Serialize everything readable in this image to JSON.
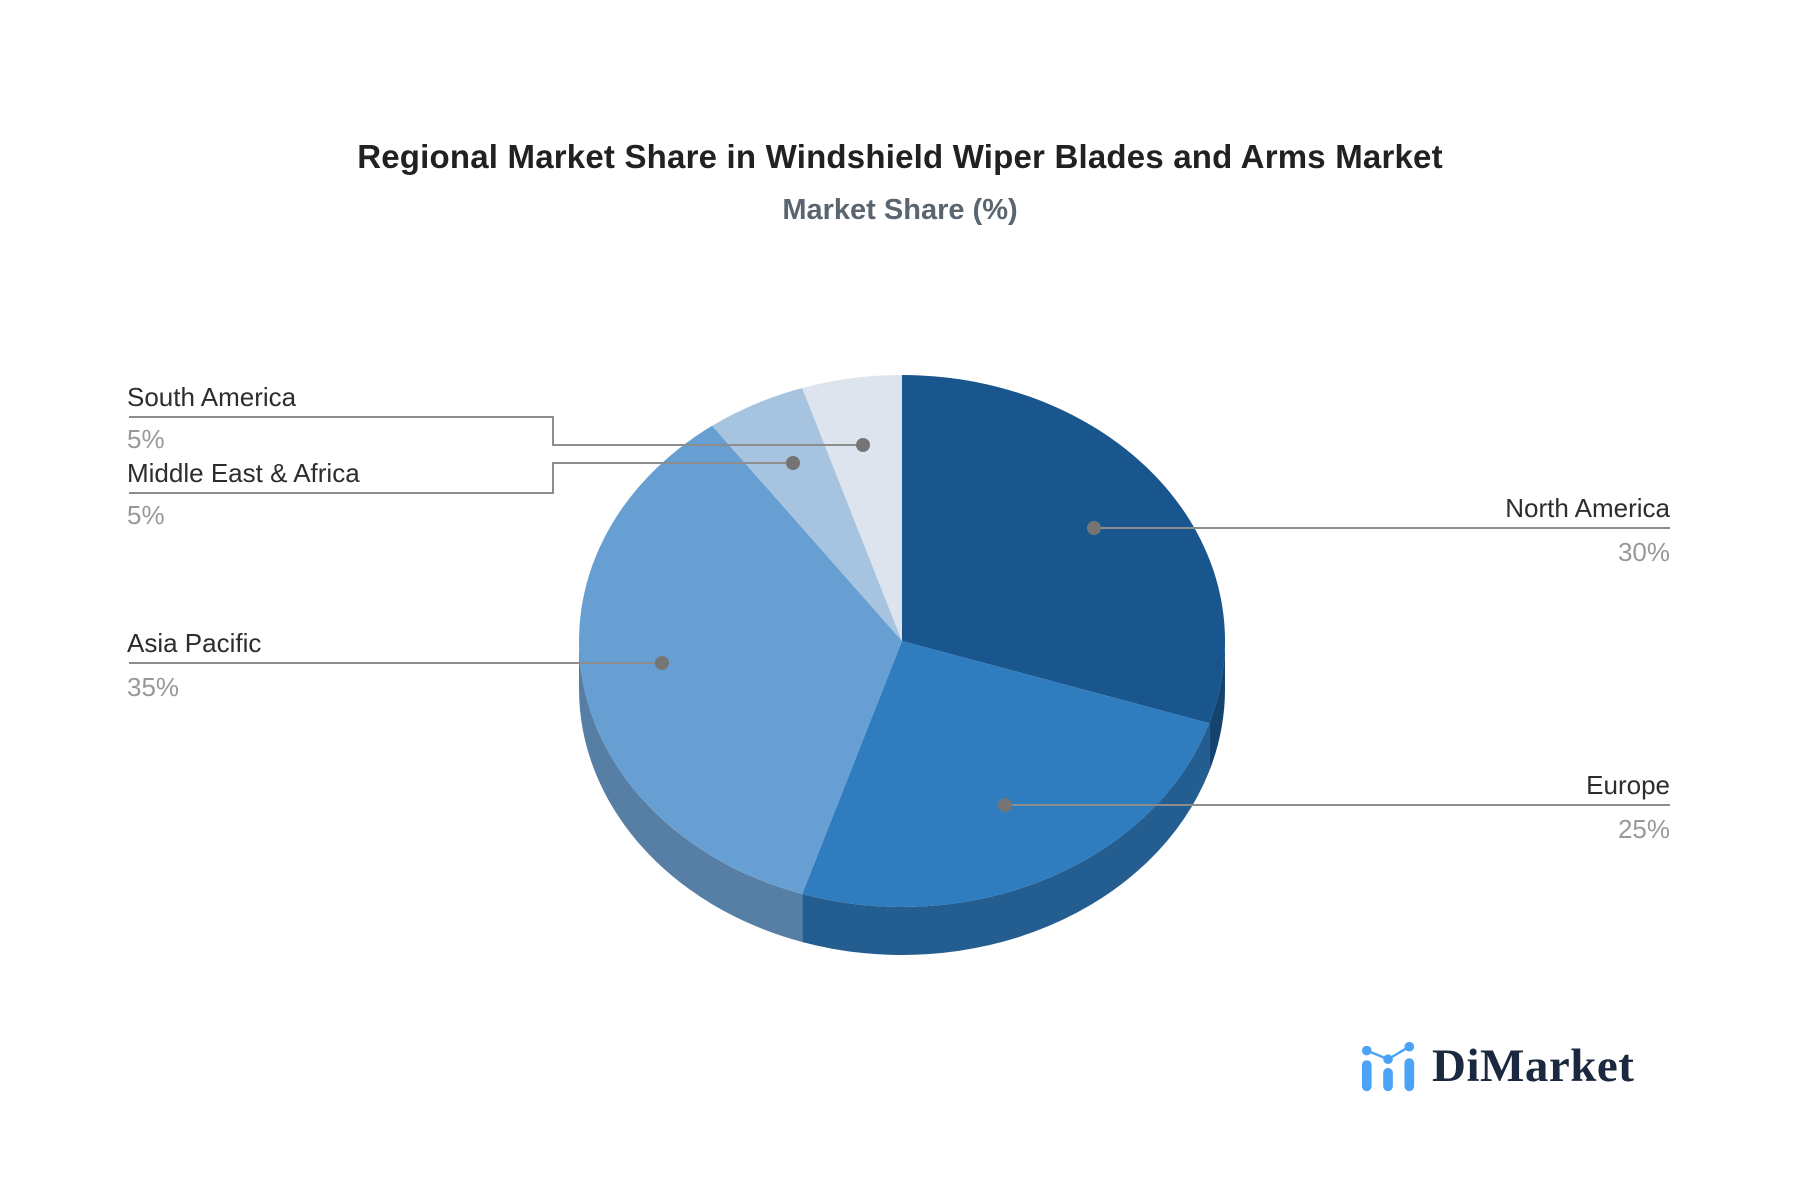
{
  "header": {
    "title": "Regional Market Share in Windshield Wiper Blades and Arms Market",
    "subtitle": "Market Share (%)"
  },
  "chart_data": {
    "type": "pie",
    "style": "3d-pie",
    "unit": "%",
    "start_angle_deg": 0,
    "direction": "clockwise",
    "legend": "none",
    "title": "Regional Market Share in Windshield Wiper Blades and Arms Market",
    "subtitle": "Market Share (%)",
    "slices": [
      {
        "name": "North America",
        "value": 30,
        "value_label": "30%",
        "color": "#1A568E",
        "side_color": "#14436F"
      },
      {
        "name": "Europe",
        "value": 25,
        "value_label": "25%",
        "color": "#2F7CBE",
        "side_color": "#245E90"
      },
      {
        "name": "Asia Pacific",
        "value": 35,
        "value_label": "35%",
        "color": "#689FD3",
        "side_color": "#577FA6"
      },
      {
        "name": "Middle East & Africa",
        "value": 5,
        "value_label": "5%",
        "color": "#A6C3E0",
        "side_color": "#7E9BB8"
      },
      {
        "name": "South America",
        "value": 5,
        "value_label": "5%",
        "color": "#DEE4EE",
        "side_color": "#ACB6C4"
      }
    ],
    "label_name_color": "#2d2d2d",
    "label_value_color": "#97999c",
    "leader_line_color": "#8d8d8d",
    "leader_dot_color": "#757575"
  },
  "branding": {
    "logo_text": "DiMarket",
    "logo_text_color": "#1B2940",
    "logo_icon": "bar-chart-logo-icon",
    "logo_accent_color": "#4BA3F7"
  }
}
